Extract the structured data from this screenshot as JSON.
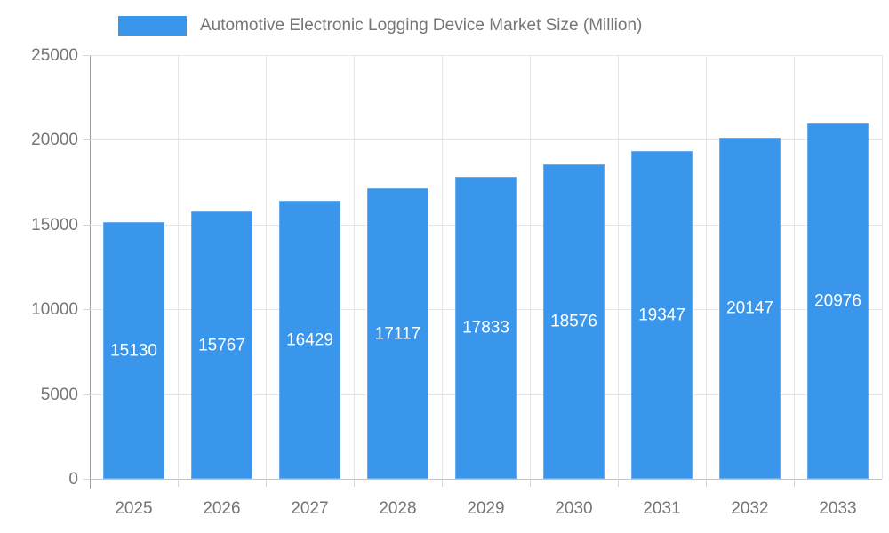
{
  "chart_data": {
    "type": "bar",
    "legend": "Automotive Electronic Logging Device Market Size (Million)",
    "categories": [
      "2025",
      "2026",
      "2027",
      "2028",
      "2029",
      "2030",
      "2031",
      "2032",
      "2033"
    ],
    "values": [
      15130,
      15767,
      16429,
      17117,
      17833,
      18576,
      19347,
      20147,
      20976
    ],
    "ylim": [
      0,
      25000
    ],
    "yticks": [
      0,
      5000,
      10000,
      15000,
      20000,
      25000
    ],
    "xlabel": "",
    "ylabel": "",
    "grid": true,
    "legend_position": "top",
    "bar_color": "#3996EB",
    "value_label_color": "#ffffff",
    "axis_text_color": "#757575",
    "gridline_color": "#e6e6e6",
    "axis_line_color": "#9e9e9e"
  }
}
